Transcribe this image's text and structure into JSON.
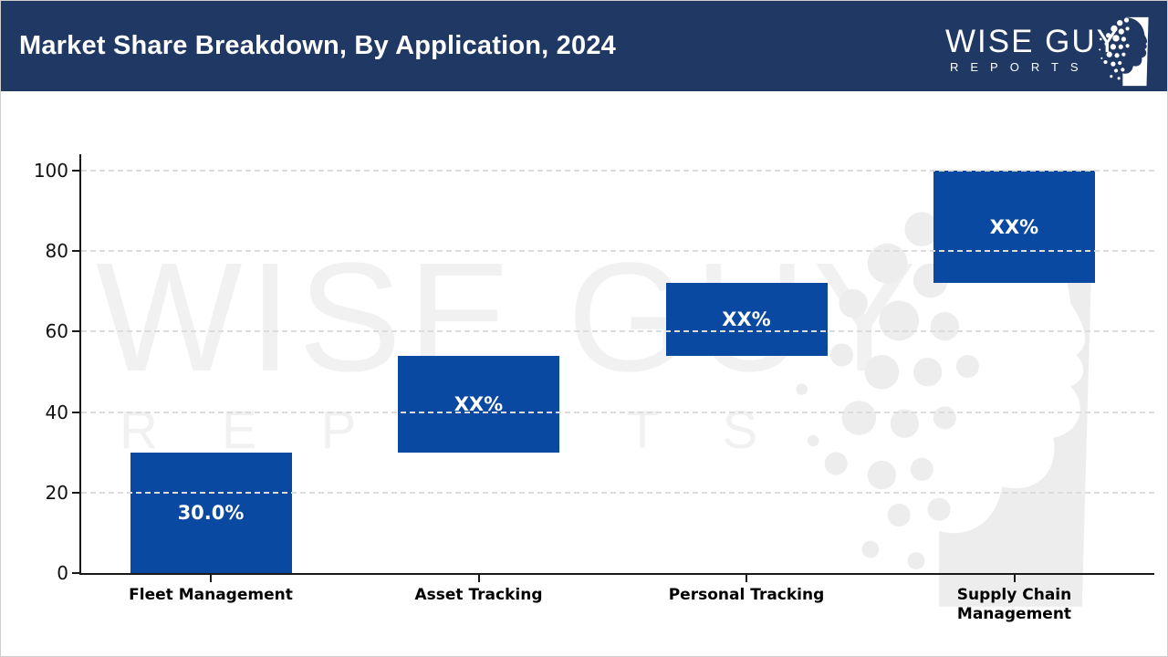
{
  "header": {
    "title": "Market Share Breakdown, By Application, 2024",
    "background": "#1f3864"
  },
  "logo": {
    "line1": "WISE GUY",
    "line2": "REPORTS"
  },
  "watermark": {
    "line1": "WISE GUY",
    "line2": "REPORTS",
    "text_color": "#f1f1f1",
    "face_color": "#ededed"
  },
  "chart_data": {
    "type": "bar",
    "subtype": "floating-waterfall",
    "title": "Market Share Breakdown, By Application, 2024",
    "categories": [
      "Fleet Management",
      "Asset Tracking",
      "Personal Tracking",
      "Supply Chain Management"
    ],
    "segments": [
      {
        "category": "Fleet Management",
        "start": 0,
        "end": 30,
        "label": "30.0%"
      },
      {
        "category": "Asset Tracking",
        "start": 30,
        "end": 54,
        "label": "XX%"
      },
      {
        "category": "Personal Tracking",
        "start": 54,
        "end": 72,
        "label": "XX%"
      },
      {
        "category": "Supply Chain Management",
        "start": 72,
        "end": 100,
        "label": "XX%"
      }
    ],
    "xlabel": "",
    "ylabel": "",
    "ylim": [
      0,
      100
    ],
    "yticks": [
      0,
      20,
      40,
      60,
      80,
      100
    ],
    "grid": "horizontal-dashed-over-bars",
    "legend": "none",
    "bar_color": "#0a49a2"
  }
}
